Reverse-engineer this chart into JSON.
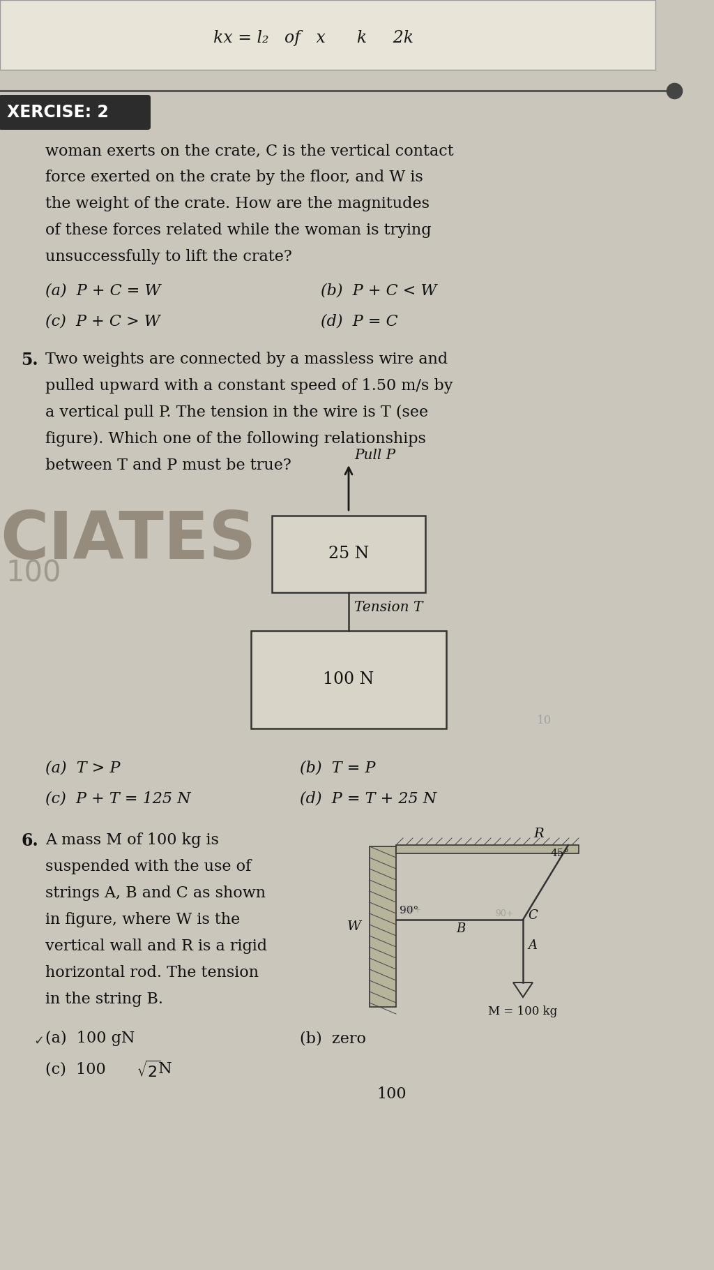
{
  "bg_color": "#cac6bc",
  "page_bg": "#cac6bc",
  "formula_text": "kx = l₂   of   x      k     2k",
  "title_text": "XERCISE: 2",
  "exercise2_lines": [
    "woman exerts on the crate, C is the vertical contact",
    "force exerted on the crate by the floor, and W is",
    "the weight of the crate. How are the magnitudes",
    "of these forces related while the woman is trying",
    "unsuccessfully to lift the crate?"
  ],
  "ex2_opt_a": "(a)  P + C = W",
  "ex2_opt_b": "(b)  P + C < W",
  "ex2_opt_c": "(c)  P + C > W",
  "ex2_opt_d": "(d)  P = C",
  "q5_lines": [
    "Two weights are connected by a massless wire and",
    "pulled upward with a constant speed of 1.50 m/s by",
    "a vertical pull P. The tension in the wire is T (see",
    "figure). Which one of the following relationships",
    "between T and P must be true?"
  ],
  "q5_opt_a": "(a)  T > P",
  "q5_opt_b": "(b)  T = P",
  "q5_opt_c": "(c)  P + T = 125 N",
  "q5_opt_d": "(d)  P = T + 25 N",
  "box1_label": "25 N",
  "box2_label": "100 N",
  "tension_label": "Tension T",
  "pull_label": "Pull P",
  "ciates_text": "CIATES",
  "q6_lines": [
    "A mass M of 100 kg is",
    "suspended with the use of",
    "strings A, B and C as shown",
    "in figure, where W is the",
    "vertical wall and R is a rigid",
    "horizontal rod. The tension",
    "in the string B."
  ],
  "q6_opt_a": "(a)  100 gN",
  "q6_opt_b": "(b)  zero",
  "q6_opt_c_val": "100",
  "mass_label": "M = 100 kg",
  "note_10": "10",
  "note_100": "100"
}
